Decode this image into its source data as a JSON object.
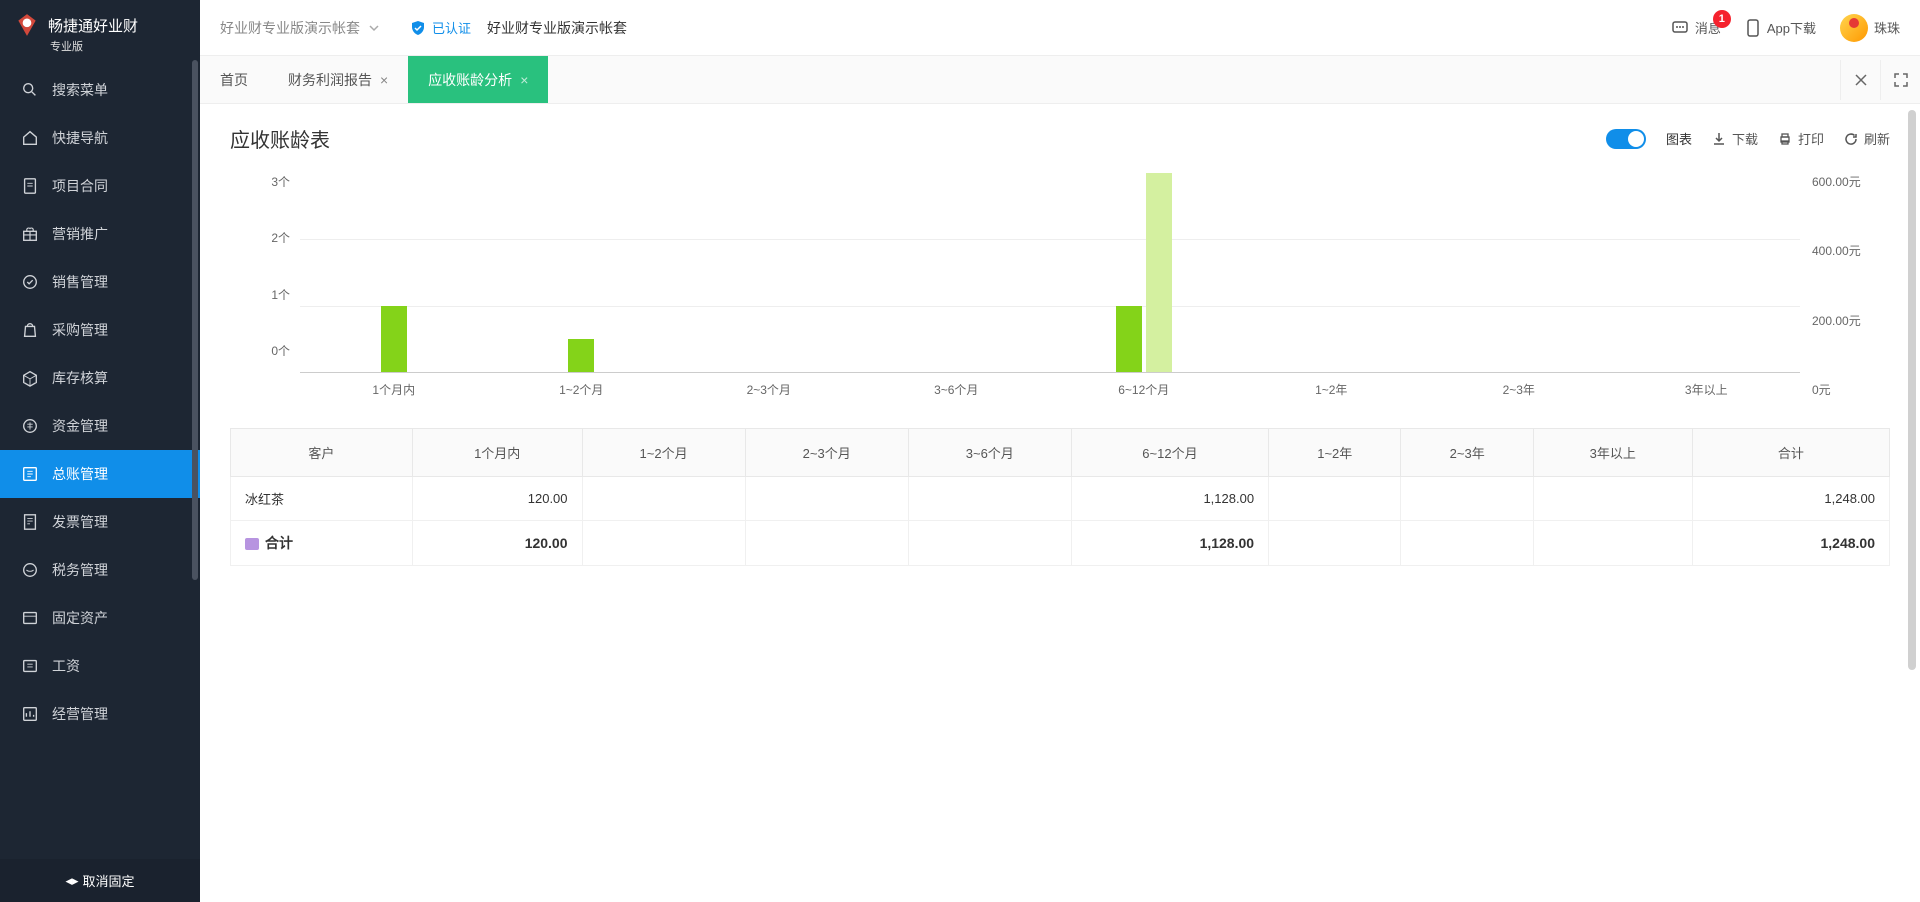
{
  "brand": {
    "name": "畅捷通好业财",
    "edition": "专业版"
  },
  "sidebar": {
    "items": [
      {
        "label": "搜索菜单",
        "icon": "search"
      },
      {
        "label": "快捷导航",
        "icon": "home"
      },
      {
        "label": "项目合同",
        "icon": "file"
      },
      {
        "label": "营销推广",
        "icon": "gift"
      },
      {
        "label": "销售管理",
        "icon": "cart"
      },
      {
        "label": "采购管理",
        "icon": "bag"
      },
      {
        "label": "库存核算",
        "icon": "box"
      },
      {
        "label": "资金管理",
        "icon": "money"
      },
      {
        "label": "总账管理",
        "icon": "ledger",
        "active": true
      },
      {
        "label": "发票管理",
        "icon": "invoice"
      },
      {
        "label": "税务管理",
        "icon": "tax"
      },
      {
        "label": "固定资产",
        "icon": "asset"
      },
      {
        "label": "工资",
        "icon": "salary"
      },
      {
        "label": "经营管理",
        "icon": "manage"
      }
    ],
    "footer": "取消固定"
  },
  "topbar": {
    "account": "好业财专业版演示帐套",
    "verified": "已认证",
    "company": "好业财专业版演示帐套",
    "actions": {
      "message": {
        "label": "消息",
        "badge": "1"
      },
      "app": {
        "label": "App下载"
      },
      "user": {
        "label": "珠珠"
      }
    }
  },
  "tabs": [
    {
      "label": "首页",
      "closable": false
    },
    {
      "label": "财务利润报告",
      "closable": true
    },
    {
      "label": "应收账龄分析",
      "closable": true,
      "active": true
    }
  ],
  "page": {
    "title": "应收账龄表",
    "actions": {
      "chart": "图表",
      "download": "下载",
      "print": "打印",
      "refresh": "刷新"
    }
  },
  "chart": {
    "type": "bar",
    "categories": [
      "1个月内",
      "1~2个月",
      "2~3个月",
      "3~6个月",
      "6~12个月",
      "1~2年",
      "2~3年",
      "3年以上"
    ],
    "left_axis": {
      "ticks": [
        "3个",
        "2个",
        "1个",
        "0个"
      ],
      "max": 3
    },
    "right_axis": {
      "ticks": [
        "600.00元",
        "400.00元",
        "200.00元",
        "0元"
      ],
      "max": 600
    },
    "series": [
      {
        "name": "count",
        "color": "#84d319",
        "values": [
          1,
          0.5,
          0,
          0,
          1,
          0,
          0,
          0
        ]
      },
      {
        "name": "amount",
        "color": "#d4f0a0",
        "values": [
          0,
          0,
          0,
          0,
          3,
          0,
          0,
          0
        ]
      }
    ],
    "background_color": "#ffffff",
    "grid_color": "#eeeeee"
  },
  "table": {
    "columns": [
      "客户",
      "1个月内",
      "1~2个月",
      "2~3个月",
      "3~6个月",
      "6~12个月",
      "1~2年",
      "2~3年",
      "3年以上",
      "合计"
    ],
    "rows": [
      {
        "cells": [
          "冰红茶",
          "120.00",
          "",
          "",
          "",
          "1,128.00",
          "",
          "",
          "",
          "1,248.00"
        ]
      }
    ],
    "total": {
      "label": "合计",
      "cells": [
        "120.00",
        "",
        "",
        "",
        "1,128.00",
        "",
        "",
        "",
        "1,248.00"
      ]
    }
  }
}
